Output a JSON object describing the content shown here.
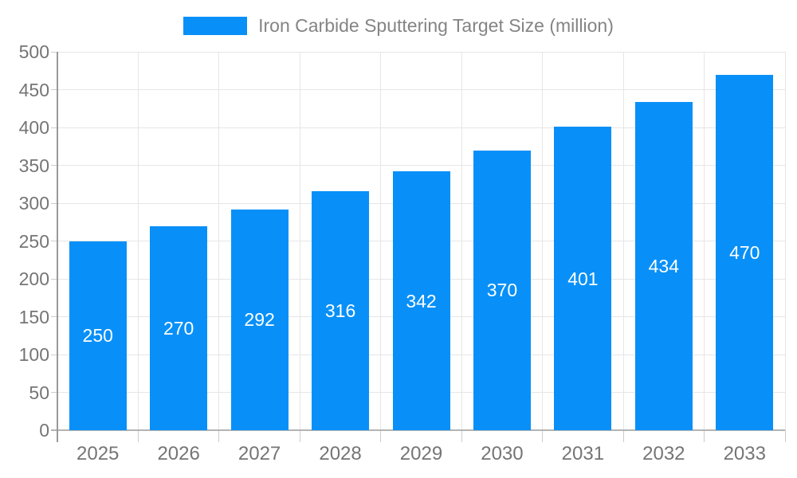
{
  "chart_data": {
    "type": "bar",
    "title": "Iron Carbide Sputtering Target Size (million)",
    "categories": [
      "2025",
      "2026",
      "2027",
      "2028",
      "2029",
      "2030",
      "2031",
      "2032",
      "2033"
    ],
    "values": [
      250,
      270,
      292,
      316,
      342,
      370,
      401,
      434,
      470
    ],
    "xlabel": "",
    "ylabel": "",
    "ylim": [
      0,
      500
    ],
    "ytick_step": 50,
    "grid": true,
    "legend_position": "top-center",
    "colors": {
      "bar": "#0890f8",
      "value_label": "#ffffff",
      "axis_label": "#757575",
      "legend_text": "#848484",
      "gridline": "#e6e6e6",
      "axis_line": "#999999",
      "tick": "#cccccc",
      "baseline": "#b3b3b3"
    }
  }
}
